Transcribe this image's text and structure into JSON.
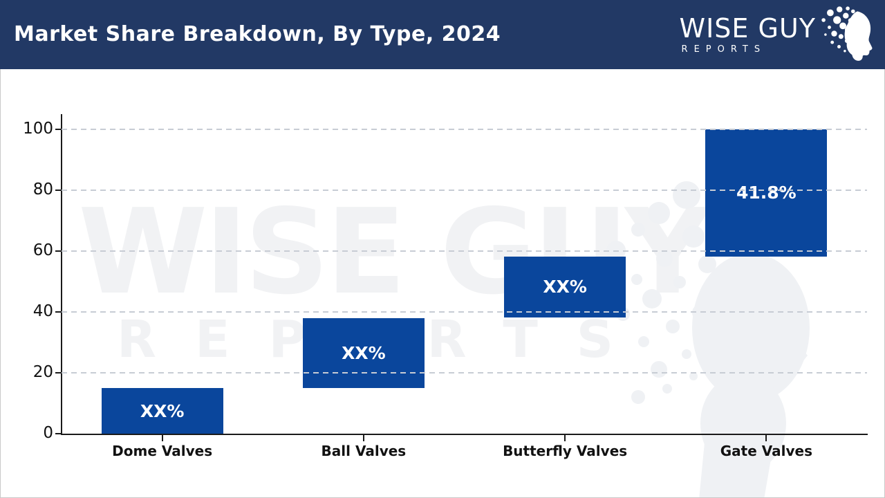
{
  "header": {
    "title": "Market Share Breakdown, By Type, 2024",
    "logo": {
      "line1": "WISE GUY",
      "line2": "REPORTS"
    }
  },
  "watermark": {
    "line1": "WISE GUY",
    "line2": "REPORTS"
  },
  "chart_data": {
    "type": "bar",
    "subtype": "waterfall-floating-bars",
    "title": "Market Share Breakdown, By Type, 2024",
    "xlabel": "",
    "ylabel": "",
    "categories": [
      "Dome Valves",
      "Ball Valves",
      "Butterfly Valves",
      "Gate Valves"
    ],
    "segments": [
      {
        "category": "Dome Valves",
        "start": 0,
        "end": 15,
        "label": "XX%"
      },
      {
        "category": "Ball Valves",
        "start": 15,
        "end": 38,
        "label": "XX%"
      },
      {
        "category": "Butterfly Valves",
        "start": 38.2,
        "end": 58.2,
        "label": "XX%"
      },
      {
        "category": "Gate Valves",
        "start": 58.2,
        "end": 100,
        "label": "41.8%"
      }
    ],
    "ylim": [
      0,
      100
    ],
    "yticks": [
      0,
      20,
      40,
      60,
      80,
      100
    ],
    "grid": "horizontal-dashed",
    "legend": "none",
    "bar_color": "#0a469c",
    "bar_label_color": "#ffffff"
  },
  "colors": {
    "header_bg": "#223965",
    "bar": "#0a469c",
    "grid": "#c7ccd4",
    "axis": "#1a1a1a",
    "watermark": "#f1f2f4",
    "card_border": "#c9c9c9"
  }
}
